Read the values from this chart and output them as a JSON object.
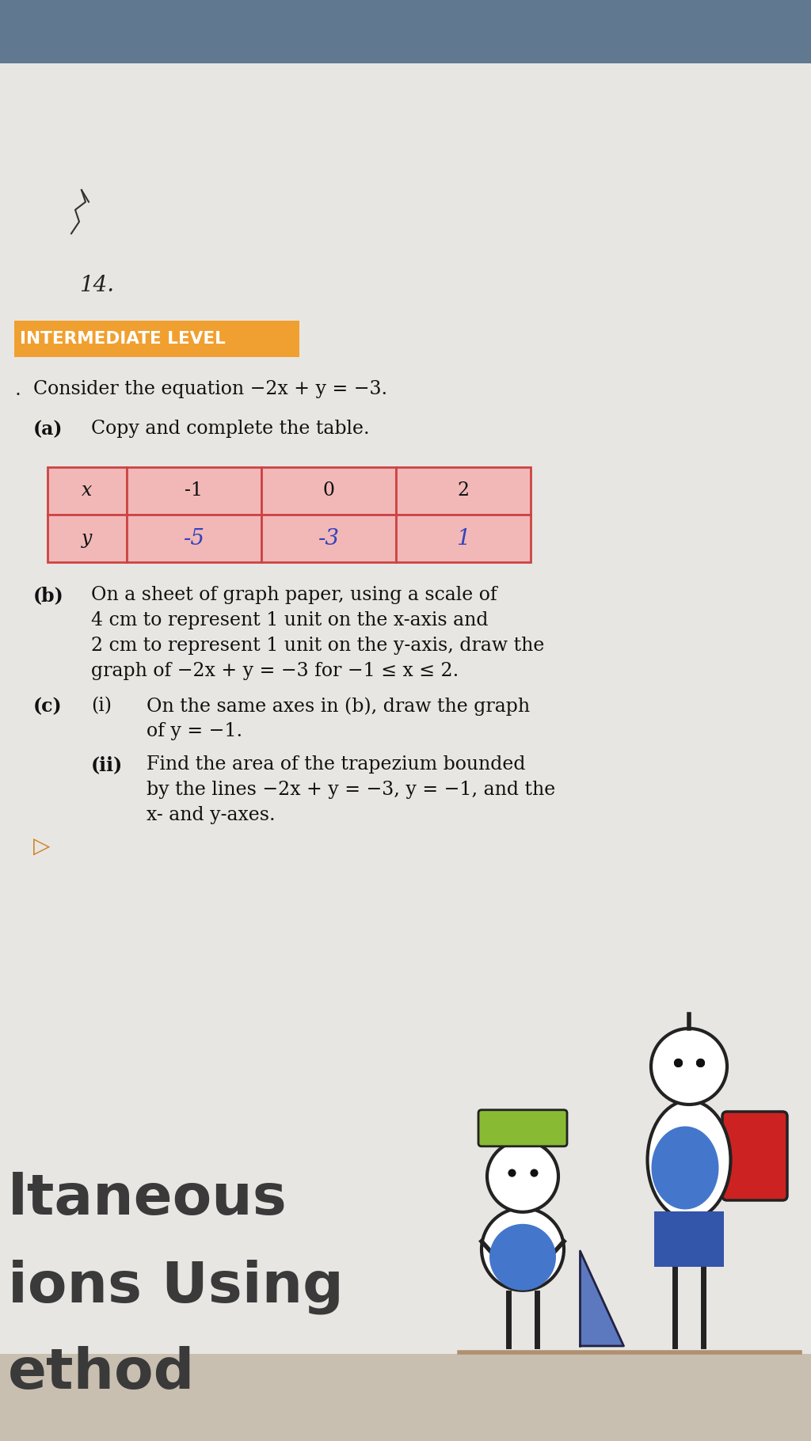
{
  "bg_color": "#b8b4b0",
  "page_bg": "#e8e6e2",
  "title_banner_color": "#f0a030",
  "title_banner_text": "INTERMEDIATE LEVEL",
  "title_banner_text_color": "#ffffff",
  "main_question": "Consider the equation −2x + y = −3.",
  "part_a_label": "(a)",
  "part_a_text": "Copy and complete the table.",
  "table_x_values": [
    "x",
    "-1",
    "0",
    "2"
  ],
  "table_y_values": [
    "y",
    "-5",
    "-3",
    "1"
  ],
  "table_header_bg": "#f2b8b8",
  "table_border_color": "#cc4444",
  "part_b_label": "(b)",
  "part_b_lines": [
    "On a sheet of graph paper, using a scale of",
    "4 cm to represent 1 unit on the x-axis and",
    "2 cm to represent 1 unit on the y-axis, draw the",
    "graph of −2x + y = −3 for −1 ≤ x ≤ 2."
  ],
  "part_c_label": "(c)",
  "part_c_i_label": "(i)",
  "part_c_i_lines": [
    "On the same axes in (b), draw the graph",
    "of y = −1."
  ],
  "part_c_ii_label": "(ii)",
  "part_c_ii_lines": [
    "Find the area of the trapezium bounded",
    "by the lines −2x + y = −3, y = −1, and the",
    "x- and y-axes."
  ],
  "bottom_text_lines": [
    "ltaneous",
    "ions Using",
    "ethod"
  ],
  "bottom_text_color": "#3a3a3a",
  "handwriting_color": "#3344bb",
  "photo_top_color": "#607890",
  "photo_bottom_color": "#a09080"
}
